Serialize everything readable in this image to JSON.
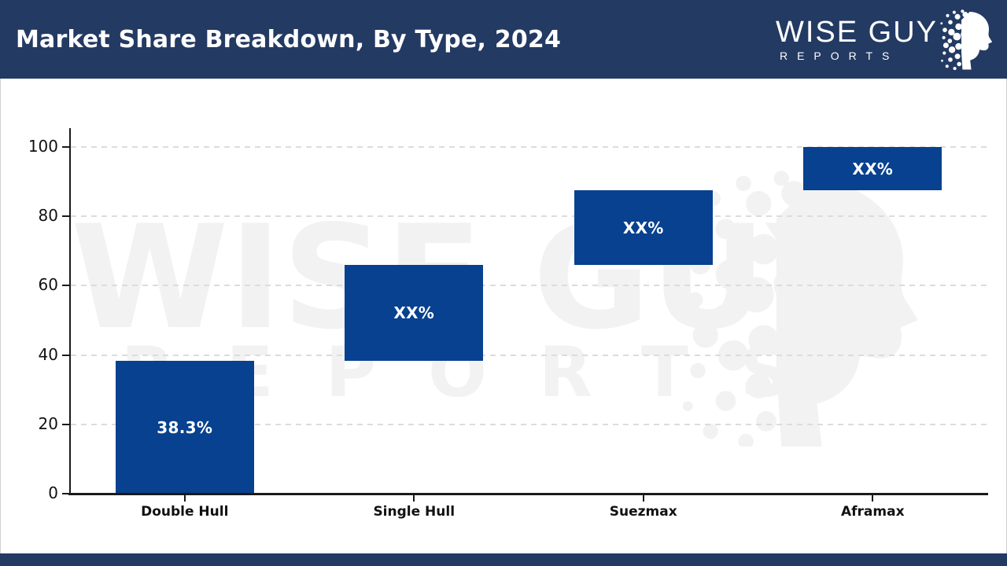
{
  "header": {
    "title": "Market Share Breakdown, By Type, 2024",
    "logo": {
      "line1": "WISE GUY",
      "line2": "REPORTS"
    }
  },
  "watermark": {
    "line1": "WISE GUY",
    "line2": "REPORTS"
  },
  "footer": {},
  "chart_data": {
    "type": "bar",
    "subtype": "waterfall",
    "title": "Market Share Breakdown, By Type, 2024",
    "categories": [
      "Double Hull",
      "Single Hull",
      "Suezmax",
      "Aframax"
    ],
    "segments": [
      {
        "category": "Double Hull",
        "start": 0,
        "end": 38.3,
        "label": "38.3%"
      },
      {
        "category": "Single Hull",
        "start": 38.3,
        "end": 66,
        "label": "XX%"
      },
      {
        "category": "Suezmax",
        "start": 66,
        "end": 87.5,
        "label": "XX%"
      },
      {
        "category": "Aframax",
        "start": 87.5,
        "end": 100,
        "label": "XX%"
      }
    ],
    "ylim": [
      0,
      100
    ],
    "yticks": [
      0,
      20,
      40,
      60,
      80,
      100
    ],
    "xlabel": "",
    "ylabel": "",
    "legend": "none",
    "grid": "dashed-horizontal",
    "colors": {
      "bar": "#07418f",
      "bar_label": "#ffffff",
      "axis": "#1a1a1a",
      "grid": "#dcdcdc",
      "header": "#233a63",
      "footer": "#233a63",
      "watermark": "#f2f2f2",
      "tick_label": "#111111"
    }
  }
}
